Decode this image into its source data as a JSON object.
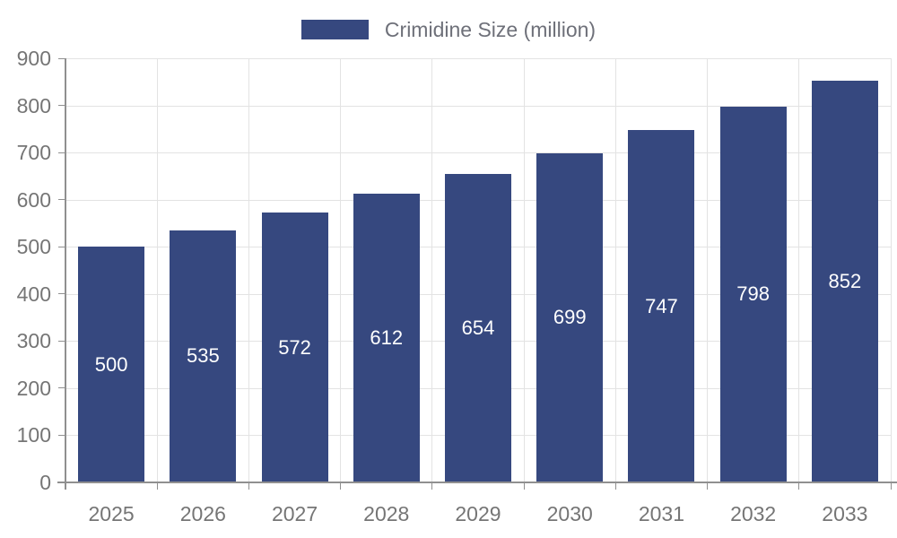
{
  "chart_data": {
    "type": "bar",
    "title": "",
    "legend_label": "Crimidine Size (million)",
    "legend_position": "top",
    "categories": [
      "2025",
      "2026",
      "2027",
      "2028",
      "2029",
      "2030",
      "2031",
      "2032",
      "2033"
    ],
    "values": [
      500,
      535,
      572,
      612,
      654,
      699,
      747,
      798,
      852
    ],
    "xlabel": "",
    "ylabel": "",
    "ylim": [
      0,
      900
    ],
    "ytick_step": 100,
    "ytick_labels": [
      "0",
      "100",
      "200",
      "300",
      "400",
      "500",
      "600",
      "700",
      "800",
      "900"
    ],
    "grid": true,
    "colors": {
      "bar": "#36487F",
      "bar_value_label": "#ffffff",
      "axis_line": "#909090",
      "gridline": "#e3e3e3",
      "tick_label": "#757575",
      "legend_text": "#6e7079"
    }
  }
}
